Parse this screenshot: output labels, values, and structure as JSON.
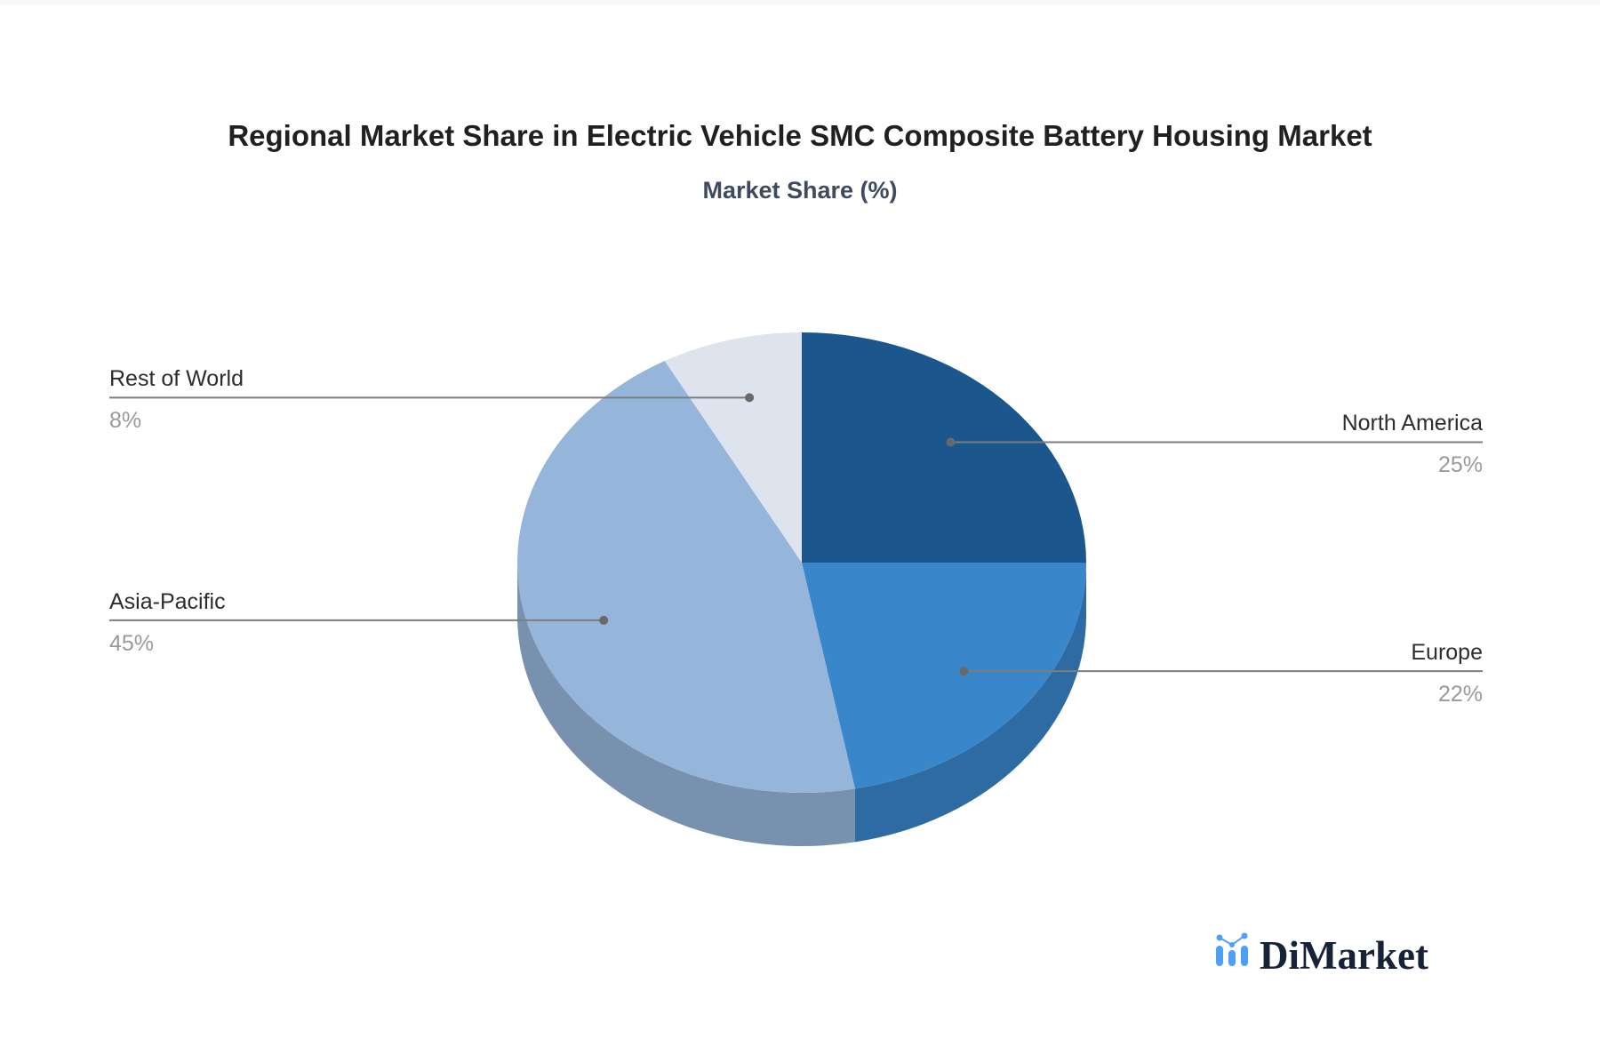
{
  "header": {
    "title": "Regional Market Share in Electric Vehicle SMC Composite Battery Housing Market",
    "subtitle": "Market Share (%)"
  },
  "chart_data": {
    "type": "pie",
    "style": "3d",
    "title": "Regional Market Share in Electric Vehicle SMC Composite Battery Housing Market",
    "subtitle": "Market Share (%)",
    "unit": "%",
    "labels": [
      "North America",
      "Europe",
      "Asia-Pacific",
      "Rest of World"
    ],
    "values": [
      25,
      22,
      45,
      8
    ],
    "value_labels": [
      "25%",
      "22%",
      "45%",
      "8%"
    ],
    "colors": [
      "#1b578c",
      "#3a86ca",
      "#95b5db",
      "#dde4ee"
    ],
    "start_angle_deg": 0,
    "direction": "clockwise",
    "legend": "none",
    "leader_line_color": "#7d7d7d",
    "leader_dot_color": "#696969",
    "label_color": "#2d2d2d",
    "value_color": "#9a9a9a"
  },
  "branding": {
    "logo_text": "DiMarket",
    "logo_text_color": "#152238",
    "logo_icon": "bar-chart-trend-icon",
    "logo_icon_color": "#4f9ff7"
  }
}
